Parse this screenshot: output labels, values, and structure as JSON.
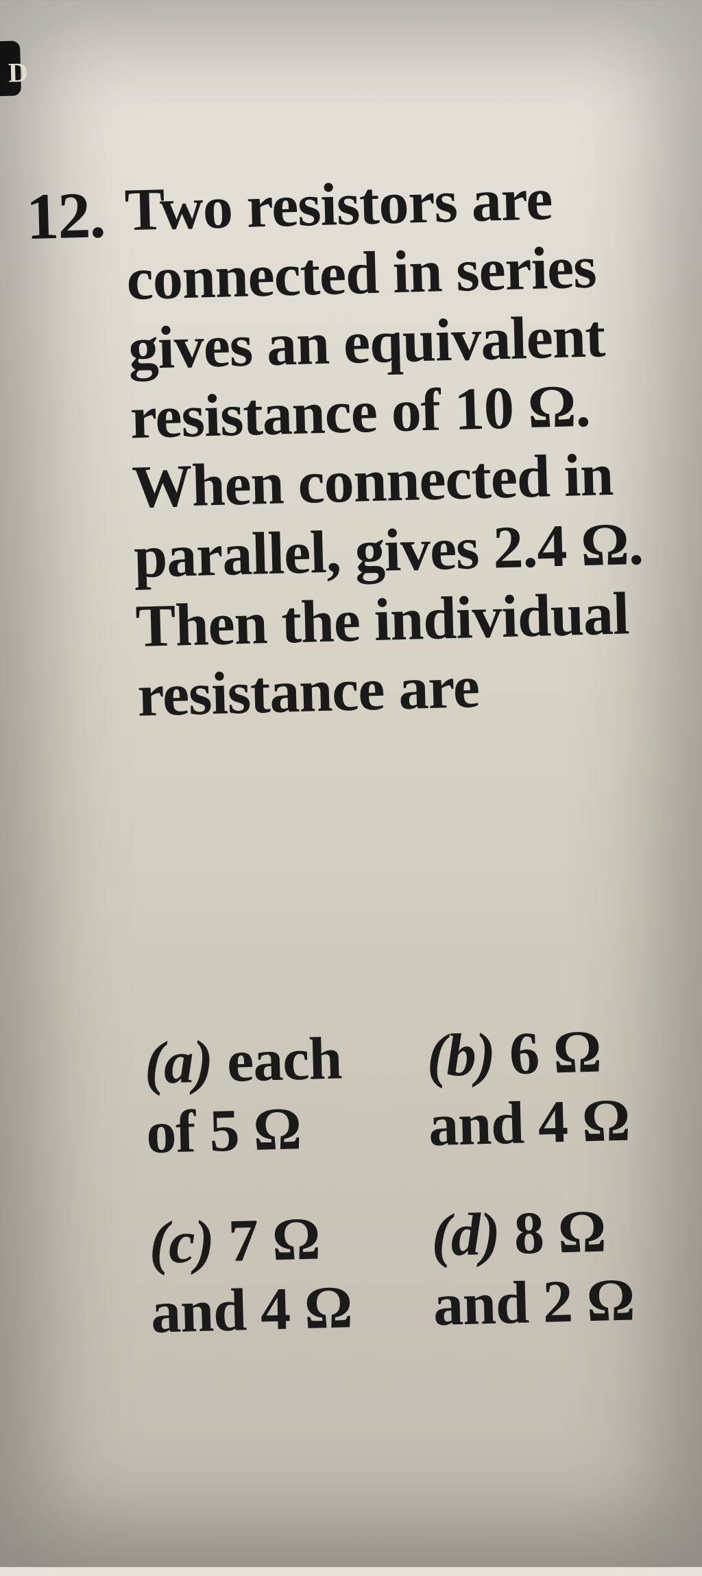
{
  "question": {
    "number": "12.",
    "text": "Two resistors are connected in series gives an equivalent resistance of 10 Ω. When connected in parallel, gives 2.4 Ω. Then the individual resistance are"
  },
  "options": {
    "a": {
      "label": "(a)",
      "text": "each of 5 Ω"
    },
    "b": {
      "label": "(b)",
      "text": "6 Ω and 4 Ω"
    },
    "c": {
      "label": "(c)",
      "text": "7 Ω and 4 Ω"
    },
    "d": {
      "label": "(d)",
      "text": "8 Ω and 2 Ω"
    }
  },
  "marker": {
    "letter": "D"
  }
}
